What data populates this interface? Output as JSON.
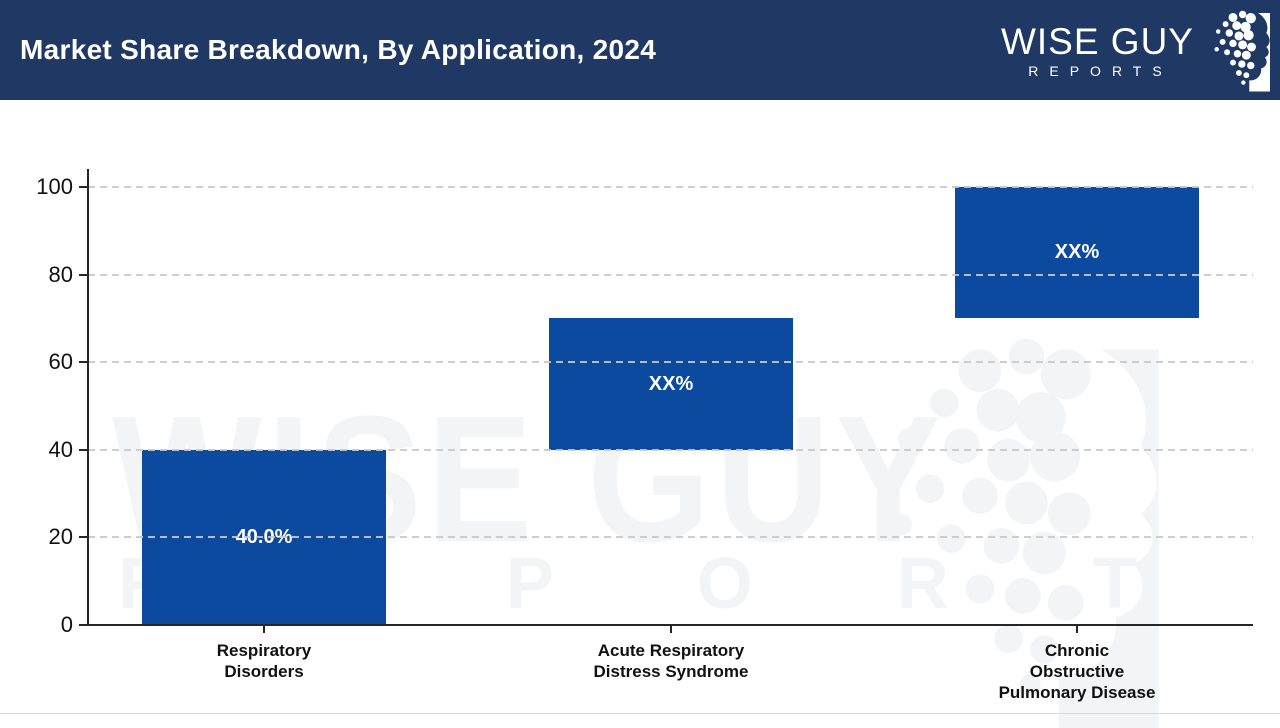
{
  "header": {
    "title": "Market Share Breakdown, By Application, 2024"
  },
  "logo": {
    "line1": "WISE GUY",
    "line2": "REPORTS",
    "face_icon": "dotted-head-profile"
  },
  "watermark": {
    "line1": "WISE GUY",
    "line2": "R E P O R T S",
    "face_icon": "dotted-head-profile"
  },
  "colors": {
    "header_bg": "#203864",
    "bar_fill": "#0b4a9f",
    "bar_label_text": "#ffffff",
    "watermark": "#f3f4f6",
    "gridline": "#c9c9c9",
    "axis": "#262626",
    "tick_text": "#111111",
    "footer_line": "#d8d8d8"
  },
  "chart_data": {
    "type": "bar",
    "subtype": "waterfall",
    "title": "Market Share Breakdown, By Application, 2024",
    "orientation": "vertical",
    "categories": [
      "Respiratory Disorders",
      "Acute Respiratory Distress Syndrome",
      "Chronic Obstructive Pulmonary Disease"
    ],
    "category_label_lines": [
      [
        "Respiratory",
        "Disorders"
      ],
      [
        "Acute Respiratory",
        "Distress Syndrome"
      ],
      [
        "Chronic",
        "Obstructive",
        "Pulmonary Disease"
      ]
    ],
    "segments": [
      {
        "category": "Respiratory Disorders",
        "start": 0,
        "end": 40,
        "label": "40.0%"
      },
      {
        "category": "Acute Respiratory Distress Syndrome",
        "start": 40,
        "end": 70,
        "label": "XX%"
      },
      {
        "category": "Chronic Obstructive Pulmonary Disease",
        "start": 70,
        "end": 100,
        "label": "XX%"
      }
    ],
    "ylim": [
      0,
      100
    ],
    "yticks": [
      0,
      20,
      40,
      60,
      80,
      100
    ],
    "xlabel": "",
    "ylabel": "",
    "grid": "horizontal-dashed",
    "legend": "none"
  }
}
